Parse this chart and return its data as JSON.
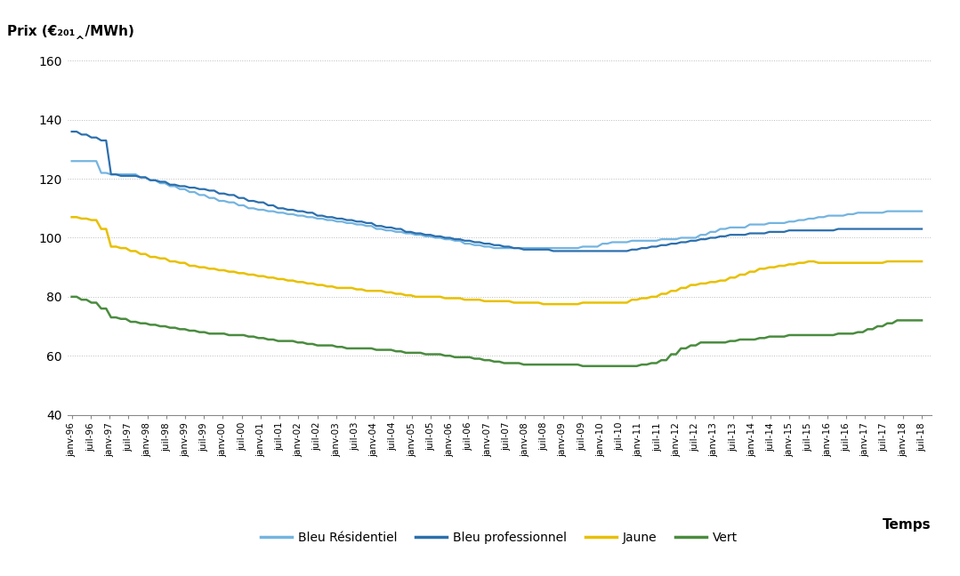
{
  "ylabel": "Prix (€₂₀₁‸/MWh)",
  "xlabel": "Temps",
  "ylim": [
    40,
    165
  ],
  "yticks": [
    40,
    60,
    80,
    100,
    120,
    140,
    160
  ],
  "background_color": "#ffffff",
  "grid_color": "#aaaaaa",
  "colors": {
    "bleu_res": "#74b4e0",
    "bleu_pro": "#2c6fad",
    "jaune": "#e8c000",
    "vert": "#4a8c3f"
  },
  "legend_labels": [
    "Bleu Résidentiel",
    "Bleu professionnel",
    "Jaune",
    "Vert"
  ],
  "start_year": 1996,
  "end_year": 2018,
  "series": {
    "bleu_res": [
      126.0,
      126.0,
      126.0,
      126.0,
      126.0,
      126.0,
      122.0,
      122.0,
      121.5,
      121.5,
      121.5,
      121.5,
      121.5,
      121.5,
      120.5,
      120.5,
      119.5,
      119.5,
      118.5,
      118.5,
      117.5,
      117.5,
      116.5,
      116.5,
      115.5,
      115.5,
      114.5,
      114.5,
      113.5,
      113.5,
      112.5,
      112.5,
      112.0,
      112.0,
      111.0,
      111.0,
      110.0,
      110.0,
      109.5,
      109.5,
      109.0,
      109.0,
      108.5,
      108.5,
      108.0,
      108.0,
      107.5,
      107.5,
      107.0,
      107.0,
      106.5,
      106.5,
      106.0,
      106.0,
      105.5,
      105.5,
      105.0,
      105.0,
      104.5,
      104.5,
      104.0,
      104.0,
      103.0,
      103.0,
      102.5,
      102.5,
      102.0,
      102.0,
      101.5,
      101.5,
      101.0,
      101.0,
      100.5,
      100.5,
      100.0,
      100.0,
      99.5,
      99.5,
      99.0,
      99.0,
      98.0,
      98.0,
      97.5,
      97.5,
      97.0,
      97.0,
      96.5,
      96.5,
      96.5,
      96.5,
      96.5,
      96.5,
      96.5,
      96.5,
      96.5,
      96.5,
      96.5,
      96.5,
      96.5,
      96.5,
      96.5,
      96.5,
      96.5,
      96.5,
      97.0,
      97.0,
      97.0,
      97.0,
      98.0,
      98.0,
      98.5,
      98.5,
      98.5,
      98.5,
      99.0,
      99.0,
      99.0,
      99.0,
      99.0,
      99.0,
      99.5,
      99.5,
      99.5,
      99.5,
      100.0,
      100.0,
      100.0,
      100.0,
      101.0,
      101.0,
      102.0,
      102.0,
      103.0,
      103.0,
      103.5,
      103.5,
      103.5,
      103.5,
      104.5,
      104.5,
      104.5,
      104.5,
      105.0,
      105.0,
      105.0,
      105.0,
      105.5,
      105.5,
      106.0,
      106.0,
      106.5,
      106.5,
      107.0,
      107.0,
      107.5,
      107.5,
      107.5,
      107.5,
      108.0,
      108.0,
      108.5,
      108.5,
      108.5,
      108.5,
      108.5,
      108.5,
      109.0,
      109.0,
      109.0,
      109.0,
      109.0,
      109.0,
      109.0,
      109.0
    ],
    "bleu_pro": [
      136.0,
      136.0,
      135.0,
      135.0,
      134.0,
      134.0,
      133.0,
      133.0,
      121.5,
      121.5,
      121.0,
      121.0,
      121.0,
      121.0,
      120.5,
      120.5,
      119.5,
      119.5,
      119.0,
      119.0,
      118.0,
      118.0,
      117.5,
      117.5,
      117.0,
      117.0,
      116.5,
      116.5,
      116.0,
      116.0,
      115.0,
      115.0,
      114.5,
      114.5,
      113.5,
      113.5,
      112.5,
      112.5,
      112.0,
      112.0,
      111.0,
      111.0,
      110.0,
      110.0,
      109.5,
      109.5,
      109.0,
      109.0,
      108.5,
      108.5,
      107.5,
      107.5,
      107.0,
      107.0,
      106.5,
      106.5,
      106.0,
      106.0,
      105.5,
      105.5,
      105.0,
      105.0,
      104.0,
      104.0,
      103.5,
      103.5,
      103.0,
      103.0,
      102.0,
      102.0,
      101.5,
      101.5,
      101.0,
      101.0,
      100.5,
      100.5,
      100.0,
      100.0,
      99.5,
      99.5,
      99.0,
      99.0,
      98.5,
      98.5,
      98.0,
      98.0,
      97.5,
      97.5,
      97.0,
      97.0,
      96.5,
      96.5,
      96.0,
      96.0,
      96.0,
      96.0,
      96.0,
      96.0,
      95.5,
      95.5,
      95.5,
      95.5,
      95.5,
      95.5,
      95.5,
      95.5,
      95.5,
      95.5,
      95.5,
      95.5,
      95.5,
      95.5,
      95.5,
      95.5,
      96.0,
      96.0,
      96.5,
      96.5,
      97.0,
      97.0,
      97.5,
      97.5,
      98.0,
      98.0,
      98.5,
      98.5,
      99.0,
      99.0,
      99.5,
      99.5,
      100.0,
      100.0,
      100.5,
      100.5,
      101.0,
      101.0,
      101.0,
      101.0,
      101.5,
      101.5,
      101.5,
      101.5,
      102.0,
      102.0,
      102.0,
      102.0,
      102.5,
      102.5,
      102.5,
      102.5,
      102.5,
      102.5,
      102.5,
      102.5,
      102.5,
      102.5,
      103.0,
      103.0,
      103.0,
      103.0,
      103.0,
      103.0,
      103.0,
      103.0,
      103.0,
      103.0,
      103.0,
      103.0,
      103.0,
      103.0,
      103.0,
      103.0,
      103.0,
      103.0
    ],
    "jaune": [
      107.0,
      107.0,
      106.5,
      106.5,
      106.0,
      106.0,
      103.0,
      103.0,
      97.0,
      97.0,
      96.5,
      96.5,
      95.5,
      95.5,
      94.5,
      94.5,
      93.5,
      93.5,
      93.0,
      93.0,
      92.0,
      92.0,
      91.5,
      91.5,
      90.5,
      90.5,
      90.0,
      90.0,
      89.5,
      89.5,
      89.0,
      89.0,
      88.5,
      88.5,
      88.0,
      88.0,
      87.5,
      87.5,
      87.0,
      87.0,
      86.5,
      86.5,
      86.0,
      86.0,
      85.5,
      85.5,
      85.0,
      85.0,
      84.5,
      84.5,
      84.0,
      84.0,
      83.5,
      83.5,
      83.0,
      83.0,
      83.0,
      83.0,
      82.5,
      82.5,
      82.0,
      82.0,
      82.0,
      82.0,
      81.5,
      81.5,
      81.0,
      81.0,
      80.5,
      80.5,
      80.0,
      80.0,
      80.0,
      80.0,
      80.0,
      80.0,
      79.5,
      79.5,
      79.5,
      79.5,
      79.0,
      79.0,
      79.0,
      79.0,
      78.5,
      78.5,
      78.5,
      78.5,
      78.5,
      78.5,
      78.0,
      78.0,
      78.0,
      78.0,
      78.0,
      78.0,
      77.5,
      77.5,
      77.5,
      77.5,
      77.5,
      77.5,
      77.5,
      77.5,
      78.0,
      78.0,
      78.0,
      78.0,
      78.0,
      78.0,
      78.0,
      78.0,
      78.0,
      78.0,
      79.0,
      79.0,
      79.5,
      79.5,
      80.0,
      80.0,
      81.0,
      81.0,
      82.0,
      82.0,
      83.0,
      83.0,
      84.0,
      84.0,
      84.5,
      84.5,
      85.0,
      85.0,
      85.5,
      85.5,
      86.5,
      86.5,
      87.5,
      87.5,
      88.5,
      88.5,
      89.5,
      89.5,
      90.0,
      90.0,
      90.5,
      90.5,
      91.0,
      91.0,
      91.5,
      91.5,
      92.0,
      92.0,
      91.5,
      91.5,
      91.5,
      91.5,
      91.5,
      91.5,
      91.5,
      91.5,
      91.5,
      91.5,
      91.5,
      91.5,
      91.5,
      91.5,
      92.0,
      92.0,
      92.0,
      92.0,
      92.0,
      92.0,
      92.0,
      92.0
    ],
    "vert": [
      80.0,
      80.0,
      79.0,
      79.0,
      78.0,
      78.0,
      76.0,
      76.0,
      73.0,
      73.0,
      72.5,
      72.5,
      71.5,
      71.5,
      71.0,
      71.0,
      70.5,
      70.5,
      70.0,
      70.0,
      69.5,
      69.5,
      69.0,
      69.0,
      68.5,
      68.5,
      68.0,
      68.0,
      67.5,
      67.5,
      67.5,
      67.5,
      67.0,
      67.0,
      67.0,
      67.0,
      66.5,
      66.5,
      66.0,
      66.0,
      65.5,
      65.5,
      65.0,
      65.0,
      65.0,
      65.0,
      64.5,
      64.5,
      64.0,
      64.0,
      63.5,
      63.5,
      63.5,
      63.5,
      63.0,
      63.0,
      62.5,
      62.5,
      62.5,
      62.5,
      62.5,
      62.5,
      62.0,
      62.0,
      62.0,
      62.0,
      61.5,
      61.5,
      61.0,
      61.0,
      61.0,
      61.0,
      60.5,
      60.5,
      60.5,
      60.5,
      60.0,
      60.0,
      59.5,
      59.5,
      59.5,
      59.5,
      59.0,
      59.0,
      58.5,
      58.5,
      58.0,
      58.0,
      57.5,
      57.5,
      57.5,
      57.5,
      57.0,
      57.0,
      57.0,
      57.0,
      57.0,
      57.0,
      57.0,
      57.0,
      57.0,
      57.0,
      57.0,
      57.0,
      56.5,
      56.5,
      56.5,
      56.5,
      56.5,
      56.5,
      56.5,
      56.5,
      56.5,
      56.5,
      56.5,
      56.5,
      57.0,
      57.0,
      57.5,
      57.5,
      58.5,
      58.5,
      60.5,
      60.5,
      62.5,
      62.5,
      63.5,
      63.5,
      64.5,
      64.5,
      64.5,
      64.5,
      64.5,
      64.5,
      65.0,
      65.0,
      65.5,
      65.5,
      65.5,
      65.5,
      66.0,
      66.0,
      66.5,
      66.5,
      66.5,
      66.5,
      67.0,
      67.0,
      67.0,
      67.0,
      67.0,
      67.0,
      67.0,
      67.0,
      67.0,
      67.0,
      67.5,
      67.5,
      67.5,
      67.5,
      68.0,
      68.0,
      69.0,
      69.0,
      70.0,
      70.0,
      71.0,
      71.0,
      72.0,
      72.0,
      72.0,
      72.0,
      72.0,
      72.0
    ]
  }
}
